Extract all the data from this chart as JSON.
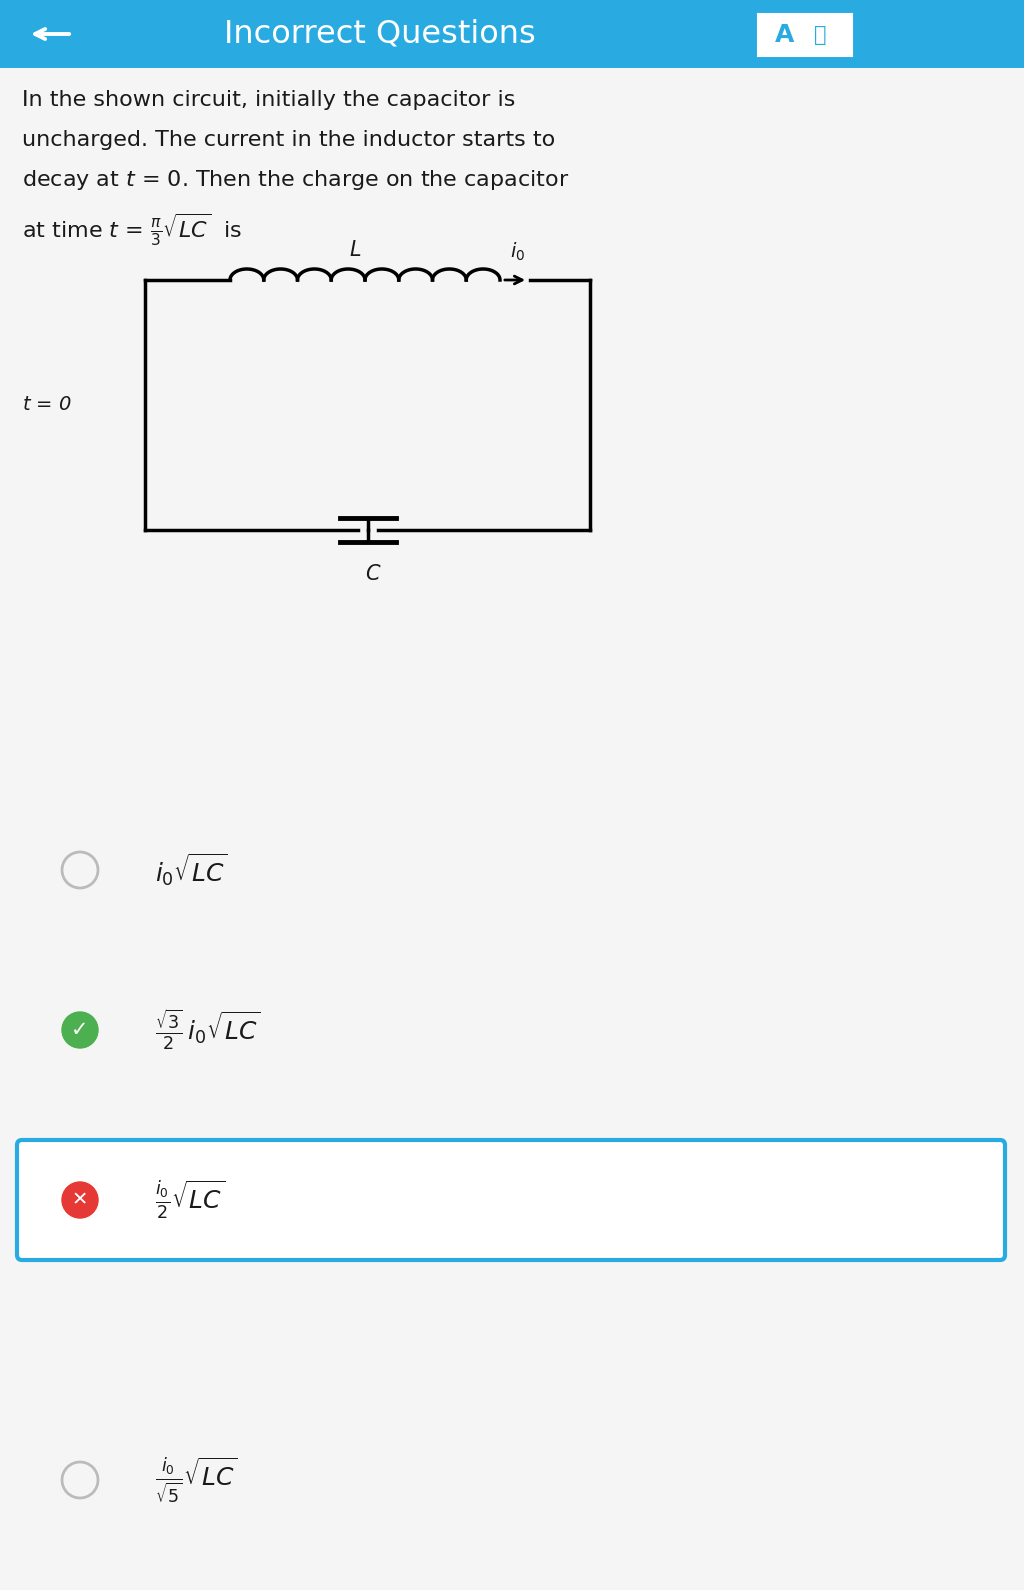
{
  "header_bg": "#29ABE2",
  "header_text": "Incorrect Questions",
  "header_text_color": "#FFFFFF",
  "body_bg": "#F5F5F5",
  "question_lines": [
    "In the shown circuit, initially the capacitor is",
    "uncharged. The current in the inductor starts to",
    "decay at $t$ = 0. Then the charge on the capacitor"
  ],
  "correct_color": "#4CAF50",
  "wrong_color": "#E53935",
  "wrong_box_color": "#29ABE2",
  "text_color": "#1a1a1a",
  "font_size_question": 16,
  "font_size_option": 18
}
